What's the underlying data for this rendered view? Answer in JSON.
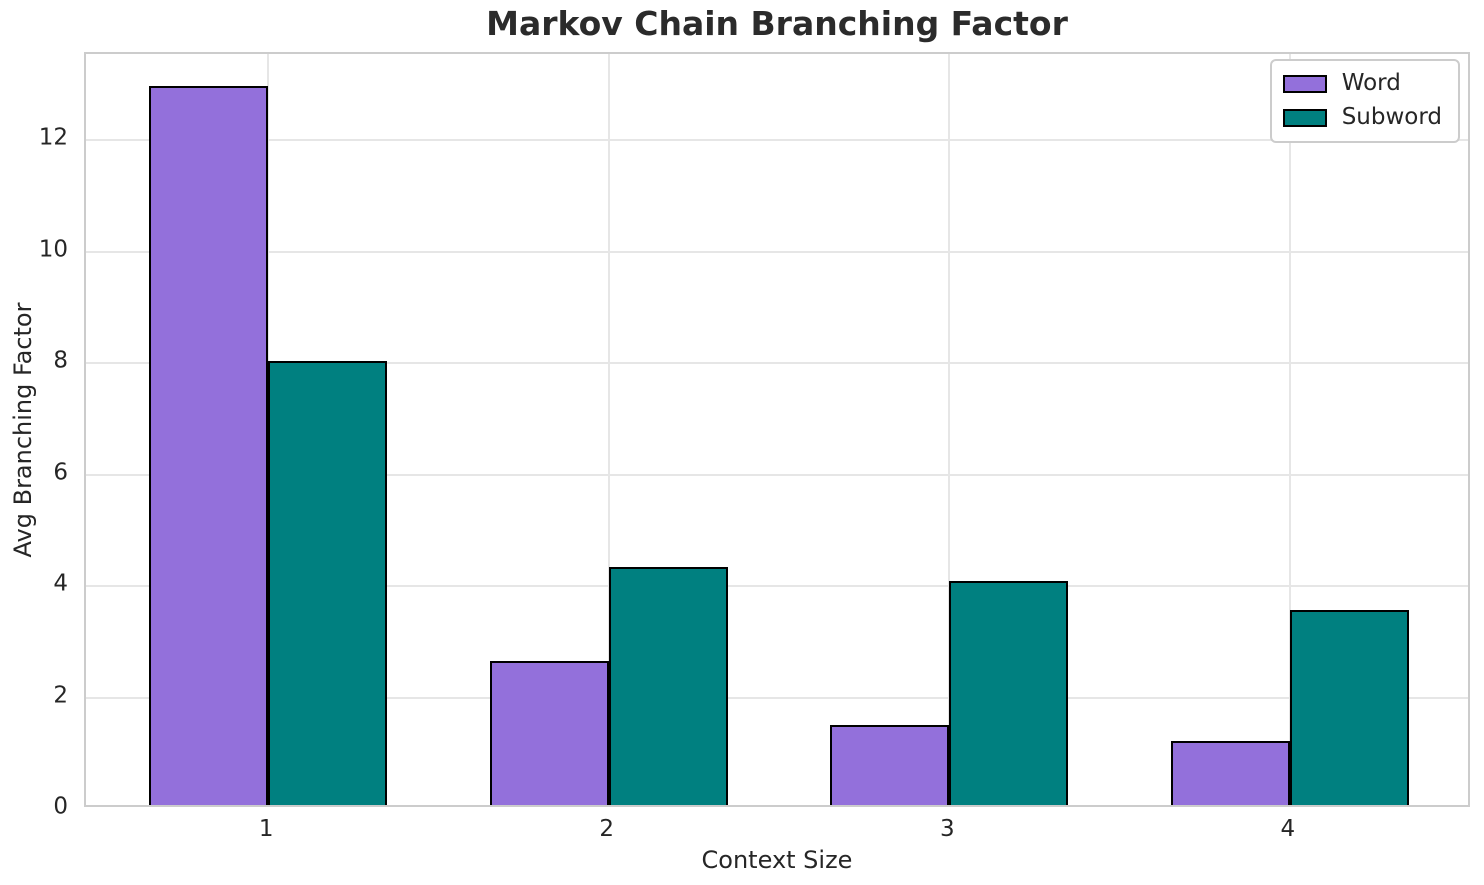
{
  "chart_data": {
    "type": "bar",
    "title": "Markov Chain Branching Factor",
    "xlabel": "Context Size",
    "ylabel": "Avg Branching Factor",
    "categories": [
      "1",
      "2",
      "3",
      "4"
    ],
    "series": [
      {
        "name": "Word",
        "color": "#9370DB",
        "values": [
          12.9,
          2.58,
          1.43,
          1.14
        ]
      },
      {
        "name": "Subword",
        "color": "#008080",
        "values": [
          7.96,
          4.27,
          4.02,
          3.5
        ]
      }
    ],
    "bar_width": 0.35,
    "bar_edge_color": "#000000",
    "yticks": [
      0,
      2,
      4,
      6,
      8,
      10,
      12
    ],
    "ylim": [
      0,
      13.55
    ],
    "xlim": [
      0.465,
      4.535
    ],
    "grid": true,
    "legend_position": "upper right",
    "colors": {
      "text": "#262626",
      "grid": "#e6e6e6",
      "spine": "#cccccc",
      "background": "#ffffff"
    }
  }
}
